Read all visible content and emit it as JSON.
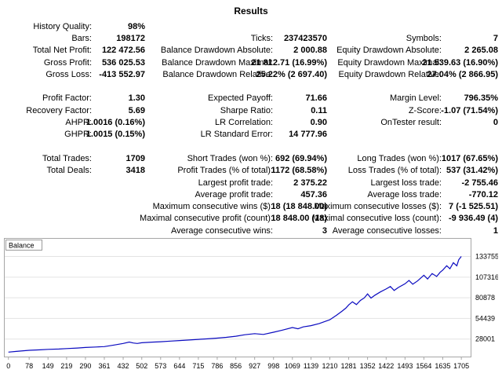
{
  "title": "Results",
  "stats": {
    "rows": [
      [
        "History Quality:",
        "98%",
        "",
        "",
        "",
        ""
      ],
      [
        "Bars:",
        "198172",
        "Ticks:",
        "237423570",
        "Symbols:",
        "7"
      ],
      [
        "Total Net Profit:",
        "122 472.56",
        "Balance Drawdown Absolute:",
        "2 000.88",
        "Equity Drawdown Absolute:",
        "2 265.08"
      ],
      [
        "Gross Profit:",
        "536 025.53",
        "Balance Drawdown Maximal:",
        "21 812.71 (16.99%)",
        "Equity Drawdown Maximal:",
        "21 539.63 (16.90%)"
      ],
      [
        "Gross Loss:",
        "-413 552.97",
        "Balance Drawdown Relative:",
        "25.22% (2 697.40)",
        "Equity Drawdown Relative:",
        "27.04% (2 866.95)"
      ],
      [
        "",
        "",
        "",
        "",
        "",
        ""
      ],
      [
        "Profit Factor:",
        "1.30",
        "Expected Payoff:",
        "71.66",
        "Margin Level:",
        "796.35%"
      ],
      [
        "Recovery Factor:",
        "5.69",
        "Sharpe Ratio:",
        "0.11",
        "Z-Score:",
        "-1.07 (71.54%)"
      ],
      [
        "AHPR:",
        "1.0016 (0.16%)",
        "LR Correlation:",
        "0.90",
        "OnTester result:",
        "0"
      ],
      [
        "GHPR:",
        "1.0015 (0.15%)",
        "LR Standard Error:",
        "14 777.96",
        "",
        ""
      ],
      [
        "",
        "",
        "",
        "",
        "",
        ""
      ],
      [
        "Total Trades:",
        "1709",
        "Short Trades (won %):",
        "692 (69.94%)",
        "Long Trades (won %):",
        "1017 (67.65%)"
      ],
      [
        "Total Deals:",
        "3418",
        "Profit Trades (% of total):",
        "1172 (68.58%)",
        "Loss Trades (% of total):",
        "537 (31.42%)"
      ],
      [
        "",
        "",
        "Largest profit trade:",
        "2 375.22",
        "Largest loss trade:",
        "-2 755.46"
      ],
      [
        "",
        "",
        "Average profit trade:",
        "457.36",
        "Average loss trade:",
        "-770.12"
      ],
      [
        "",
        "",
        "Maximum consecutive wins ($):",
        "18 (18 848.00)",
        "Maximum consecutive losses ($):",
        "7 (-1 525.51)"
      ],
      [
        "",
        "",
        "Maximal consecutive profit (count):",
        "18 848.00 (18)",
        "Maximal consecutive loss (count):",
        "-9 936.49 (4)"
      ],
      [
        "",
        "",
        "Average consecutive wins:",
        "3",
        "Average consecutive losses:",
        "1"
      ]
    ]
  },
  "chart_data": {
    "type": "line",
    "title": "Balance",
    "legend_position": "top-left",
    "grid": "horizontal",
    "xlim": [
      -14,
      1740
    ],
    "ylim": [
      5600,
      156400
    ],
    "x_ticks": [
      0,
      78,
      149,
      219,
      290,
      361,
      432,
      502,
      573,
      644,
      715,
      786,
      856,
      927,
      998,
      1069,
      1139,
      1210,
      1281,
      1352,
      1422,
      1493,
      1564,
      1635,
      1705
    ],
    "y_ticks": [
      28001,
      54439,
      80878,
      107316,
      133755
    ],
    "line_color": "#0b0bc0",
    "grid_color": "#e3e3e3",
    "border_color": "#a6a6a6",
    "series": [
      {
        "name": "Balance",
        "x": [
          0,
          30,
          78,
          120,
          149,
          190,
          219,
          260,
          290,
          330,
          361,
          400,
          432,
          455,
          470,
          485,
          502,
          540,
          573,
          610,
          644,
          680,
          715,
          750,
          786,
          820,
          856,
          890,
          927,
          960,
          998,
          1030,
          1069,
          1090,
          1110,
          1139,
          1170,
          1210,
          1235,
          1255,
          1270,
          1281,
          1295,
          1310,
          1325,
          1340,
          1352,
          1365,
          1380,
          1400,
          1422,
          1438,
          1452,
          1468,
          1493,
          1508,
          1522,
          1540,
          1564,
          1578,
          1595,
          1612,
          1625,
          1635,
          1650,
          1662,
          1675,
          1688,
          1695,
          1705
        ],
        "y": [
          11300,
          12200,
          13600,
          14200,
          14800,
          15300,
          15900,
          16600,
          17300,
          17900,
          18400,
          20500,
          22400,
          24200,
          23000,
          22400,
          23300,
          24100,
          24600,
          25400,
          26100,
          26800,
          27600,
          28300,
          29200,
          30200,
          31600,
          33500,
          35000,
          34000,
          36800,
          39400,
          42800,
          41200,
          43600,
          45200,
          47900,
          52800,
          58500,
          63500,
          67500,
          71800,
          75800,
          72200,
          77500,
          80800,
          85800,
          80500,
          84200,
          88300,
          92200,
          95300,
          90200,
          94100,
          98800,
          103000,
          98200,
          102400,
          109800,
          104900,
          111900,
          108100,
          113500,
          116300,
          121900,
          118000,
          125700,
          121800,
          129500,
          133755
        ]
      }
    ]
  }
}
